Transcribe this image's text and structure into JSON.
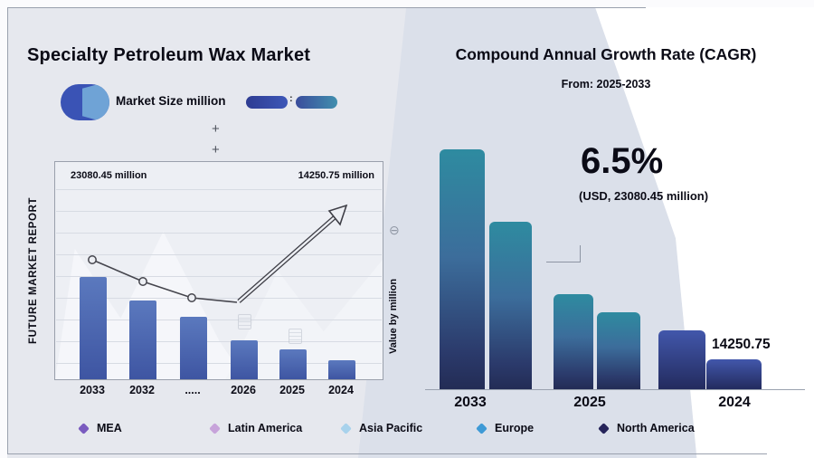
{
  "header": {
    "left_title": "Specialty Petroleum Wax Market",
    "market_size_label": "Market Size million",
    "right_title": "Compound Annual Growth Rate (CAGR)",
    "right_subtitle": "From: 2025-2033"
  },
  "cagr": {
    "value": "6.5%",
    "detail": "(USD, 23080.45 million)"
  },
  "left_chart": {
    "side_label": "FUTURE MARKET REPORT",
    "top_left_value": "23080.45 million",
    "top_right_value": "14250.75 million",
    "y_axis_label": "Value by million"
  },
  "right_chart": {
    "callout_value": "14250.75"
  },
  "decor": {
    "plus": "+",
    "circle_minus": "⊖",
    "colon": ":"
  },
  "legend": {
    "items": [
      {
        "label": "MEA",
        "color": "#7a5bbf"
      },
      {
        "label": "Latin America",
        "color": "#c7a3da"
      },
      {
        "label": "Asia Pacific",
        "color": "#a8d2ec"
      },
      {
        "label": "Europe",
        "color": "#3e9ad6"
      },
      {
        "label": "North America",
        "color": "#26245a"
      }
    ]
  },
  "colors": {
    "left_bar_top": "#5b79be",
    "left_bar_bottom": "#3e55a2",
    "right_bar_teal_top": "#2e8ba0",
    "right_bar_navy_bottom": "#232b5e",
    "background": "#e6e8ee",
    "swoosh": "#ffffff"
  },
  "chart_data": [
    {
      "type": "bar",
      "title": "Specialty Petroleum Wax Market — Market Size million",
      "categories": [
        "2033",
        "2032",
        ".....",
        "2026",
        "2025",
        "2024"
      ],
      "values_relative_height": [
        113,
        87,
        69,
        43,
        33,
        21
      ],
      "annotations": [
        "23080.45 million (left, 2033 side)",
        "14250.75 million (right, 2024 side)"
      ],
      "ylabel": "Value by million",
      "trend_note": "marker line declines from 2033 to 2026 then double-line arrow rises to upper right",
      "grid": true,
      "numeric_axis_shown": false
    },
    {
      "type": "bar",
      "title": "Compound Annual Growth Rate (CAGR) 6.5%, From: 2025-2033",
      "categories": [
        "2033",
        "2025",
        "2024"
      ],
      "series": [
        {
          "name": "bar-a",
          "values_relative_height": [
            265,
            105,
            65
          ]
        },
        {
          "name": "bar-b",
          "values_relative_height": [
            185,
            85,
            33
          ]
        }
      ],
      "annotations": [
        "14250.75 labelled beside 2024 bars"
      ],
      "numeric_axis_shown": false
    }
  ]
}
